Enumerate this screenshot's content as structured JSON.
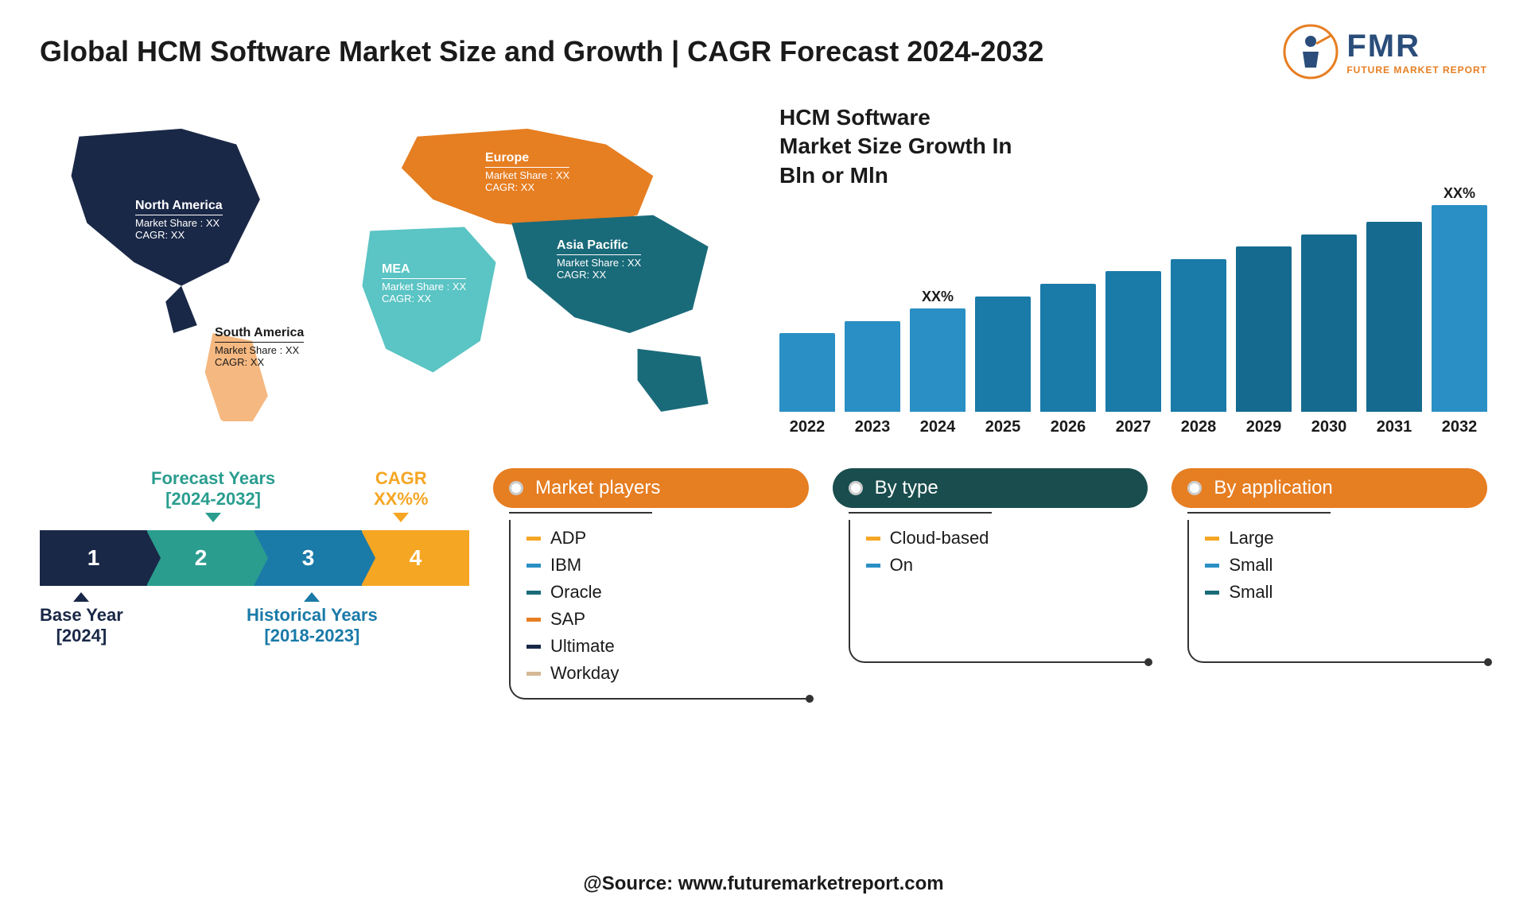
{
  "title": "Global HCM Software Market Size and Growth | CAGR Forecast 2024-2032",
  "logo": {
    "fmr": "FMR",
    "sub": "FUTURE MARKET REPORT"
  },
  "chart": {
    "title": "HCM Software\nMarket Size Growth In\nBln or Mln",
    "type": "bar",
    "years": [
      "2022",
      "2023",
      "2024",
      "2025",
      "2026",
      "2027",
      "2028",
      "2029",
      "2030",
      "2031",
      "2032"
    ],
    "values": [
      38,
      44,
      50,
      56,
      62,
      68,
      74,
      80,
      86,
      92,
      100
    ],
    "bar_colors": [
      "#2a8fc4",
      "#2a8fc4",
      "#2a8fc4",
      "#1a7aa8",
      "#1a7aa8",
      "#1a7aa8",
      "#1a7aa8",
      "#156a8f",
      "#156a8f",
      "#156a8f",
      "#2a8fc4"
    ],
    "labels": {
      "2": "XX%",
      "10": "XX%"
    },
    "background_color": "#ffffff"
  },
  "regions": {
    "north_america": {
      "name": "North America",
      "share": "Market Share : XX",
      "cagr": "CAGR: XX",
      "color": "#1a2847"
    },
    "south_america": {
      "name": "South America",
      "share": "Market Share : XX",
      "cagr": "CAGR: XX",
      "color": "#f5b880"
    },
    "europe": {
      "name": "Europe",
      "share": "Market Share : XX",
      "cagr": "CAGR: XX",
      "color": "#e67e22"
    },
    "mea": {
      "name": "MEA",
      "share": "Market Share : XX",
      "cagr": "CAGR: XX",
      "color": "#5bc4c4"
    },
    "asia_pacific": {
      "name": "Asia Pacific",
      "share": "Market Share : XX",
      "cagr": "CAGR: XX",
      "color": "#1a6b7a"
    }
  },
  "timeline": {
    "segments": [
      {
        "num": "1",
        "color": "#1a2847"
      },
      {
        "num": "2",
        "color": "#2a9d8f"
      },
      {
        "num": "3",
        "color": "#1a7aa8"
      },
      {
        "num": "4",
        "color": "#f5a623"
      }
    ],
    "labels": {
      "base_year": {
        "title": "Base Year",
        "sub": "[2024]",
        "color": "#1a2847"
      },
      "forecast": {
        "title": "Forecast Years",
        "sub": "[2024-2032]",
        "color": "#2a9d8f"
      },
      "historical": {
        "title": "Historical Years",
        "sub": "[2018-2023]",
        "color": "#1a7aa8"
      },
      "cagr": {
        "title": "CAGR",
        "sub": "XX%%",
        "color": "#f5a623"
      }
    }
  },
  "pills": {
    "market_players": {
      "label": "Market players",
      "color": "#e67e22",
      "items": [
        "ADP",
        "IBM",
        "Oracle",
        "SAP",
        "Ultimate",
        "Workday"
      ],
      "dash_colors": [
        "#f5a623",
        "#2a8fc4",
        "#1a6b7a",
        "#e67e22",
        "#1a2847",
        "#d4b896"
      ]
    },
    "by_type": {
      "label": "By type",
      "color": "#1a4d4d",
      "items": [
        "Cloud-based",
        "On"
      ],
      "dash_colors": [
        "#f5a623",
        "#2a8fc4"
      ]
    },
    "by_application": {
      "label": "By application",
      "color": "#e67e22",
      "items": [
        "Large",
        "Small",
        "Small"
      ],
      "dash_colors": [
        "#f5a623",
        "#2a8fc4",
        "#1a6b7a"
      ]
    }
  },
  "footer": "@Source: www.futuremarketreport.com"
}
